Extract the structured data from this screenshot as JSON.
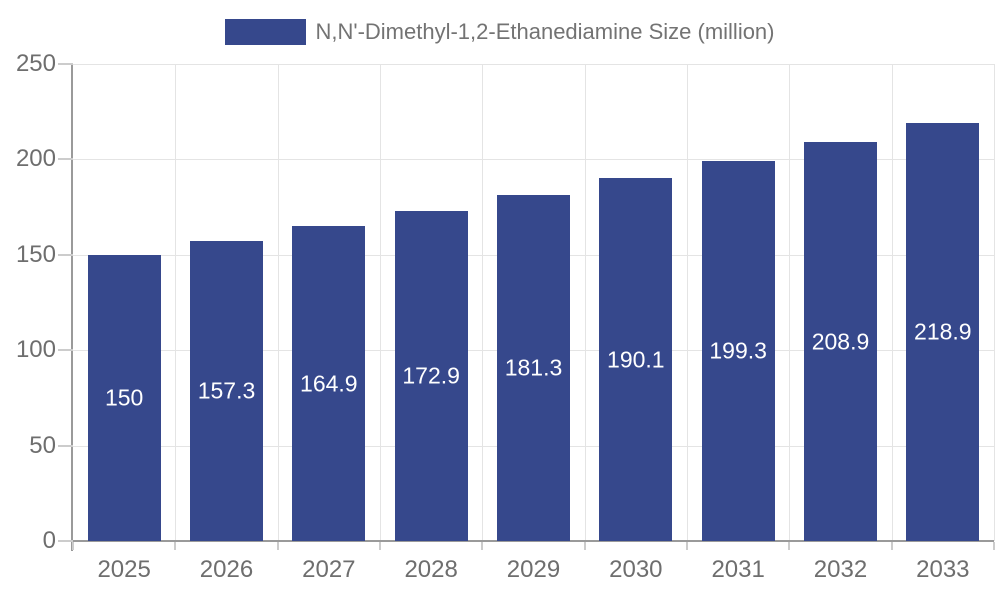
{
  "legend": {
    "label": "N,N'-Dimethyl-1,2-Ethanediamine Size (million)",
    "swatch_color": "#36488C"
  },
  "chart_data": {
    "type": "bar",
    "title": "N,N'-Dimethyl-1,2-Ethanediamine Size (million)",
    "series_name": "N,N'-Dimethyl-1,2-Ethanediamine Size (million)",
    "categories": [
      "2025",
      "2026",
      "2027",
      "2028",
      "2029",
      "2030",
      "2031",
      "2032",
      "2033"
    ],
    "values": [
      150,
      157.3,
      164.9,
      172.9,
      181.3,
      190.1,
      199.3,
      208.9,
      218.9
    ],
    "value_labels": [
      "150",
      "157.3",
      "164.9",
      "172.9",
      "181.3",
      "190.1",
      "199.3",
      "208.9",
      "218.9"
    ],
    "xlabel": "",
    "ylabel": "",
    "ylim": [
      0,
      250
    ],
    "yticks": [
      0,
      50,
      100,
      150,
      200,
      250
    ],
    "grid": true,
    "legend_position": "top-center",
    "colors": {
      "bar": "#36488C",
      "bar_label": "#FFFFFF",
      "axis_line": "#9A9A9A",
      "tick": "#CCCCCC",
      "gridline": "#E4E4E4",
      "axis_text": "#6E6E6E",
      "legend_text": "#737373",
      "background": "#FFFFFF"
    }
  }
}
